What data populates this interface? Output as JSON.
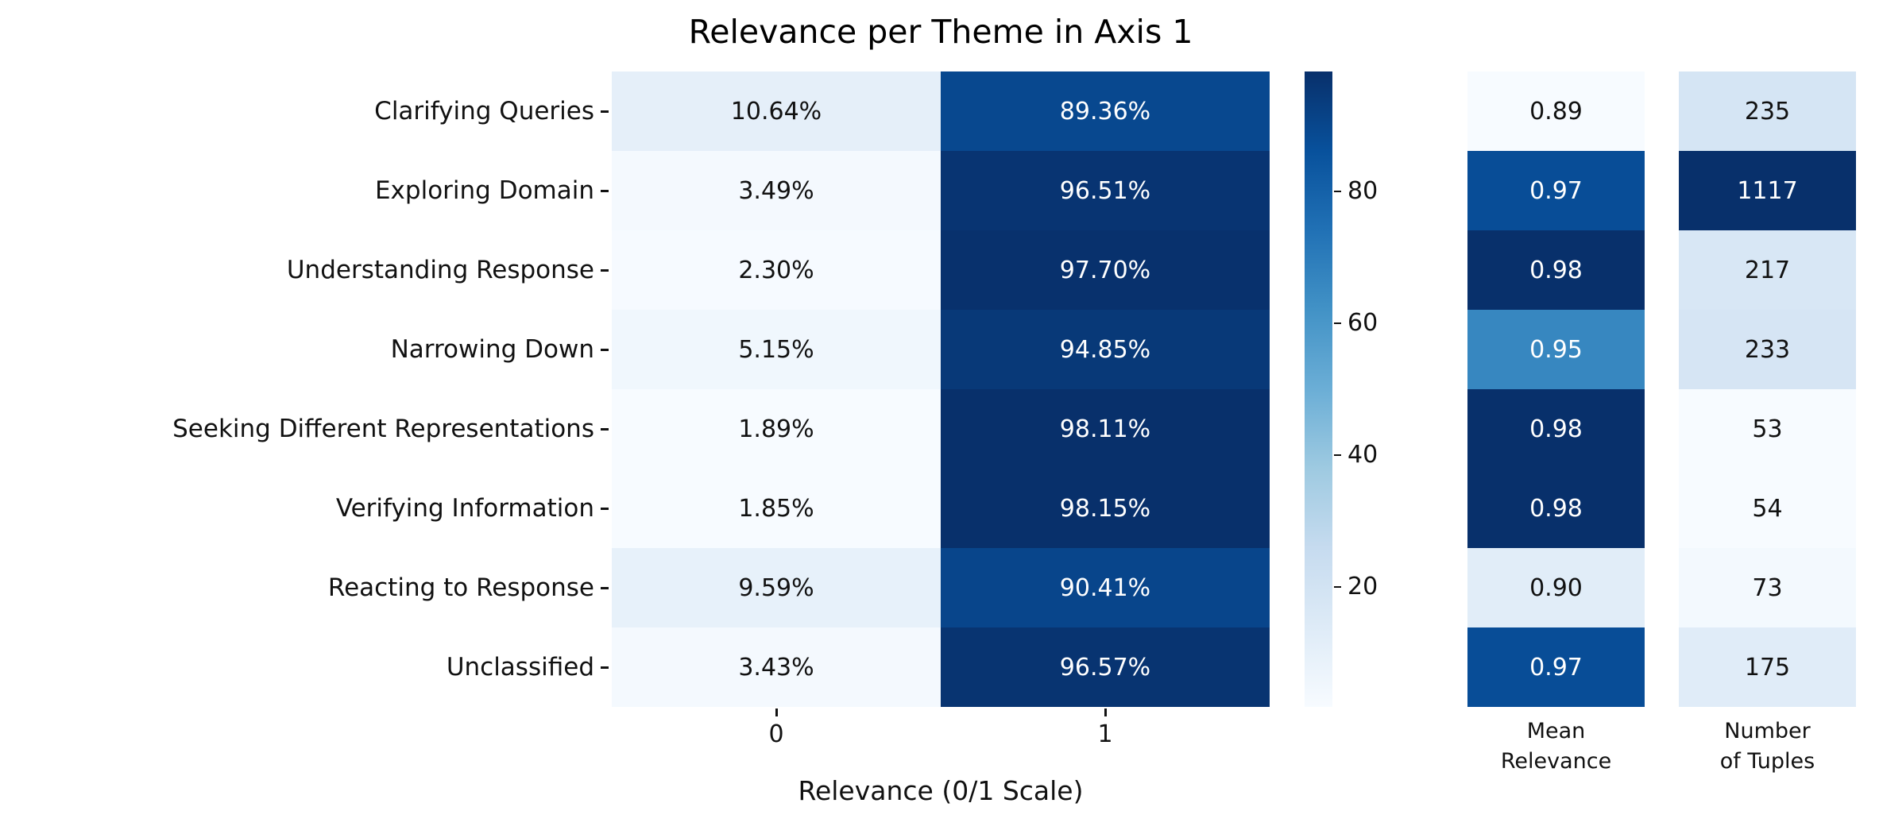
{
  "title": "Relevance per Theme in Axis 1",
  "chart_data": {
    "type": "heatmap",
    "title": "Relevance per Theme in Axis 1",
    "colormap": "Blues",
    "xlabel": "Relevance (0/1 Scale)",
    "x_ticklabels": [
      "0",
      "1"
    ],
    "themes": [
      "Clarifying Queries",
      "Exploring Domain",
      "Understanding Response",
      "Narrowing Down",
      "Seeking Different Representations",
      "Verifying Information",
      "Reacting to Response",
      "Unclassified"
    ],
    "relevance_pct": {
      "columns": [
        "0",
        "1"
      ],
      "rows": [
        [
          10.64,
          89.36
        ],
        [
          3.49,
          96.51
        ],
        [
          2.3,
          97.7
        ],
        [
          5.15,
          94.85
        ],
        [
          1.89,
          98.11
        ],
        [
          1.85,
          98.15
        ],
        [
          9.59,
          90.41
        ],
        [
          3.43,
          96.57
        ]
      ]
    },
    "mean_relevance": {
      "label": "Mean\nRelevance",
      "values": [
        0.89,
        0.97,
        0.98,
        0.95,
        0.98,
        0.98,
        0.9,
        0.97
      ]
    },
    "num_tuples": {
      "label": "Number\nof Tuples",
      "values": [
        235,
        1117,
        217,
        233,
        53,
        54,
        73,
        175
      ]
    },
    "colorbar_ticks": [
      20,
      40,
      60,
      80
    ],
    "colors": {
      "cmap_low": "#f7fbff",
      "cmap_high": "#08306b",
      "text_dark": "#111111",
      "text_light": "#ffffff"
    }
  }
}
